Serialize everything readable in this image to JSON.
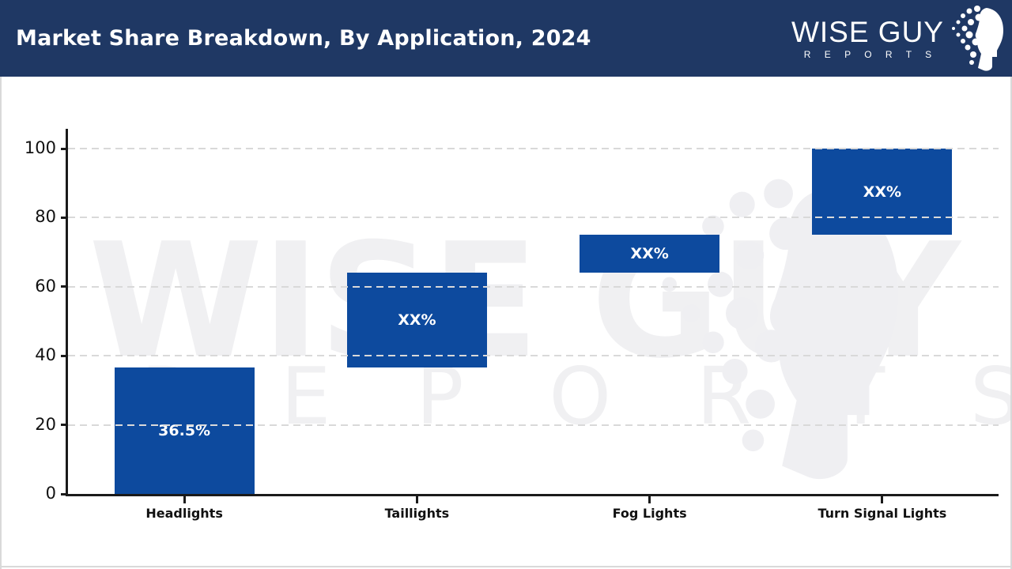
{
  "header": {
    "title": "Market Share Breakdown, By Application, 2024",
    "bg_color": "#1f3864",
    "logo": {
      "line1": "WISE GUY",
      "line2": "R E P O R T S"
    }
  },
  "watermark": {
    "line1": "WISE GUY",
    "line2": "R E P O R T S"
  },
  "chart_data": {
    "type": "bar",
    "subtype": "waterfall",
    "title": "Market Share Breakdown, By Application, 2024",
    "categories": [
      "Headlights",
      "Taillights",
      "Fog Lights",
      "Turn Signal Lights"
    ],
    "segments": [
      {
        "category": "Headlights",
        "start": 0,
        "end": 36.5,
        "label": "36.5%"
      },
      {
        "category": "Taillights",
        "start": 36.5,
        "end": 64,
        "label": "XX%"
      },
      {
        "category": "Fog Lights",
        "start": 64,
        "end": 75,
        "label": "XX%"
      },
      {
        "category": "Turn Signal Lights",
        "start": 75,
        "end": 100,
        "label": "XX%"
      }
    ],
    "yticks": [
      0,
      20,
      40,
      60,
      80,
      100
    ],
    "ylim": [
      0,
      100
    ],
    "xlabel": "",
    "ylabel": "",
    "grid": "horizontal-dashed",
    "legend": "none",
    "colors": {
      "bar": "#0d4a9e",
      "bar_label": "#ffffff",
      "grid": "#d9d9d9",
      "axis": "#1a1a1a",
      "tick_label": "#111111",
      "watermark": "#f0f0f2"
    }
  }
}
